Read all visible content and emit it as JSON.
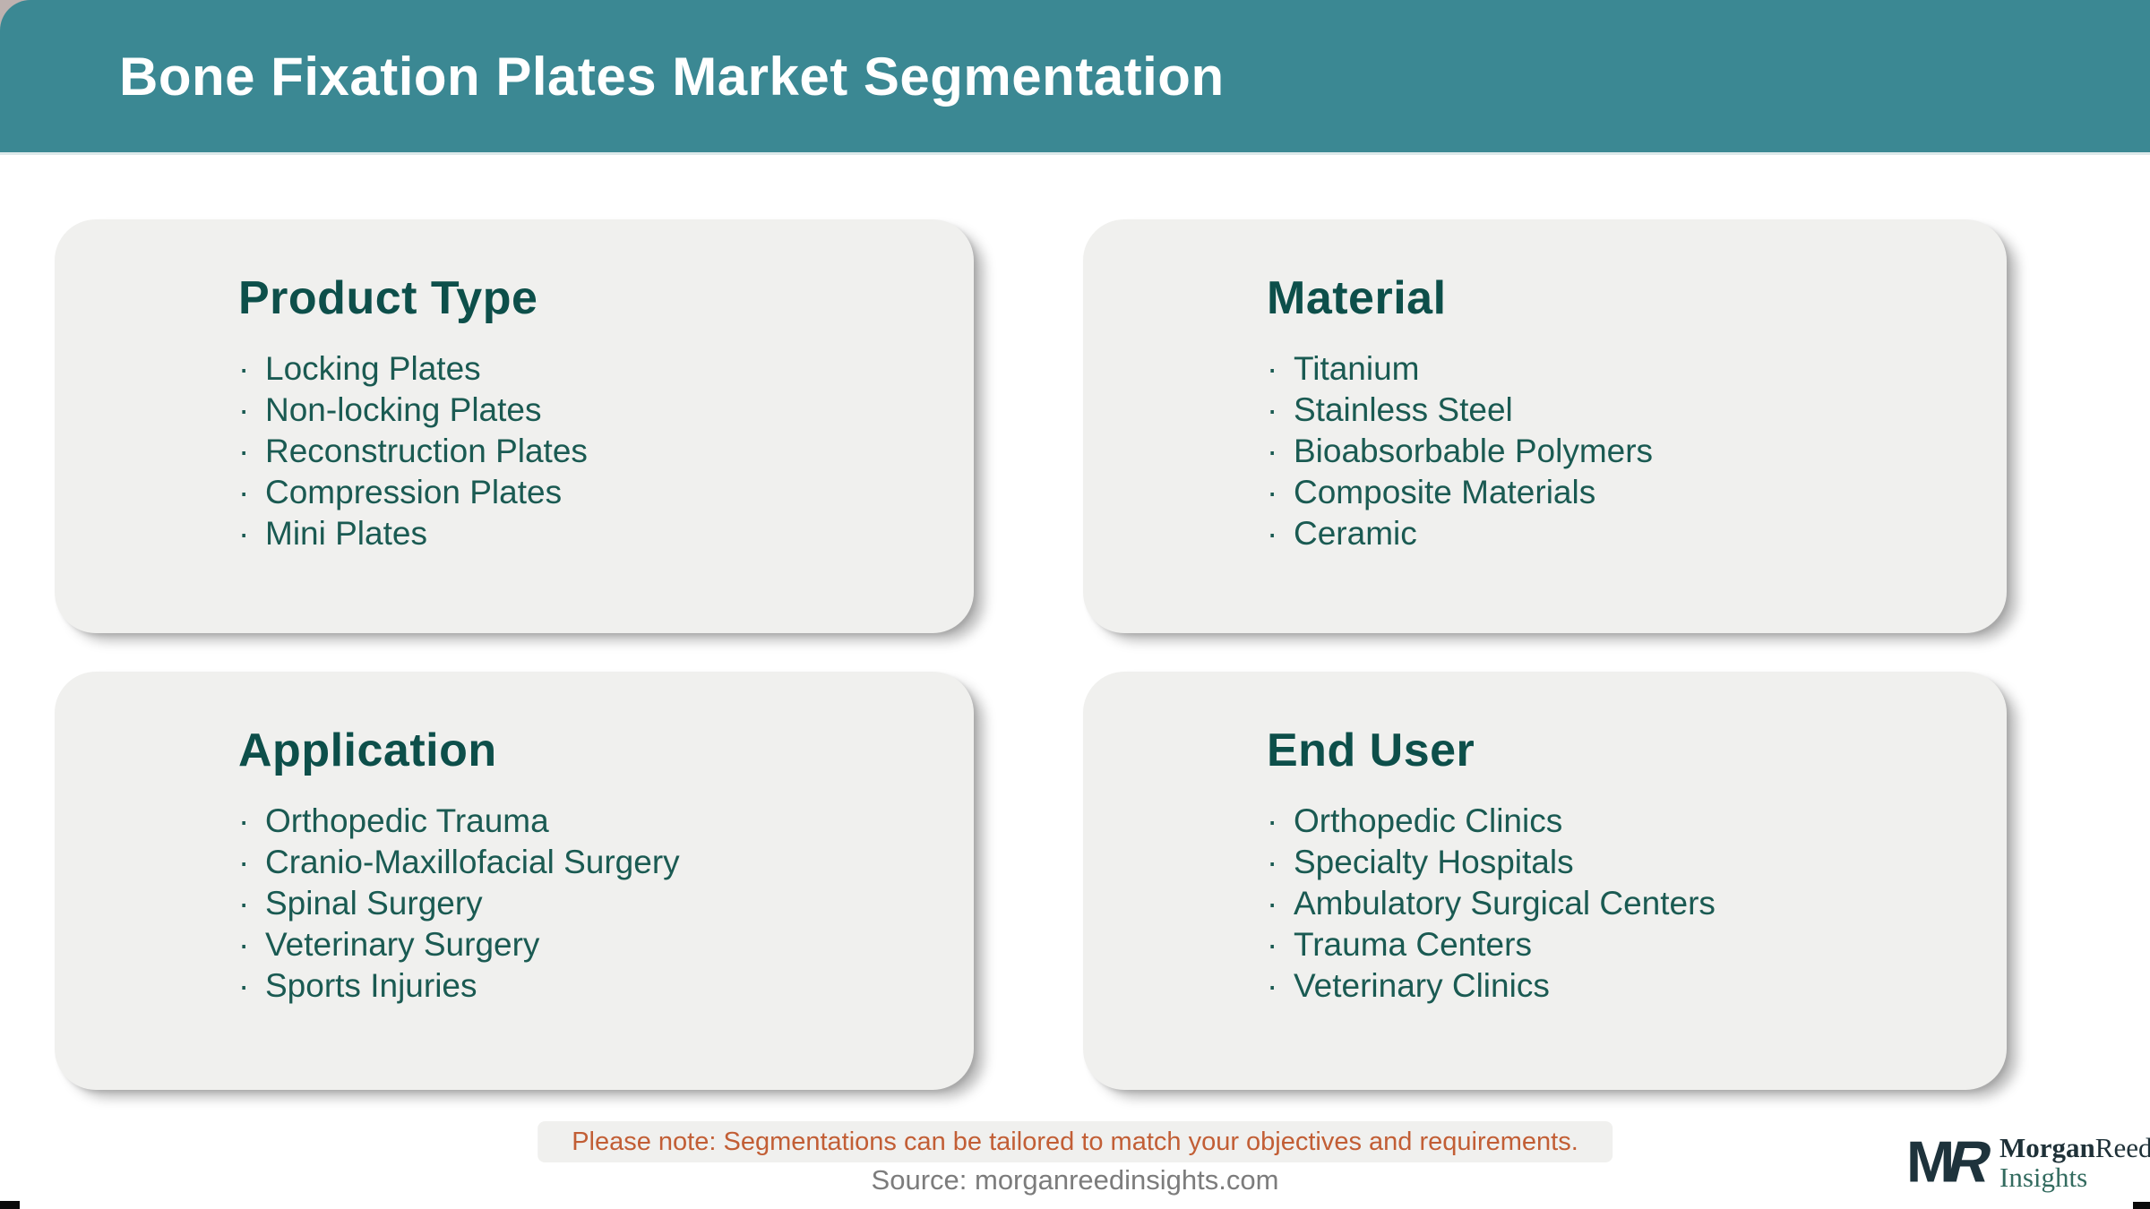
{
  "header": {
    "title": "Bone Fixation Plates Market Segmentation"
  },
  "list_bullet": "·",
  "cards": [
    {
      "title": "Product Type",
      "items": [
        "Locking Plates",
        "Non-locking Plates",
        "Reconstruction Plates",
        "Compression Plates",
        "Mini Plates"
      ]
    },
    {
      "title": "Material",
      "items": [
        "Titanium",
        "Stainless Steel",
        "Bioabsorbable Polymers",
        "Composite Materials",
        "Ceramic"
      ]
    },
    {
      "title": "Application",
      "items": [
        "Orthopedic Trauma",
        "Cranio-Maxillofacial Surgery",
        "Spinal Surgery",
        "Veterinary Surgery",
        "Sports Injuries"
      ]
    },
    {
      "title": "End User",
      "items": [
        "Orthopedic Clinics",
        "Specialty Hospitals",
        "Ambulatory Surgical Centers",
        "Trauma Centers",
        "Veterinary Clinics"
      ]
    }
  ],
  "footer": {
    "note": "Please note: Segmentations can be tailored to match your objectives and requirements.",
    "source": "Source: morganreedinsights.com",
    "logo": {
      "monogram_m": "M",
      "monogram_r": "R",
      "name_bold": "Morgan",
      "name_regular": "Reed",
      "tagline": "Insights"
    }
  },
  "colors": {
    "header_teal": "#3b8893",
    "card_background": "#f0f0ee",
    "card_title": "#0d4f4a",
    "card_item": "#1a5a52",
    "note_orange": "#c25e35",
    "source_gray": "#7c7c7c",
    "logo_dark": "#1e333c",
    "logo_teal": "#336b5f"
  }
}
